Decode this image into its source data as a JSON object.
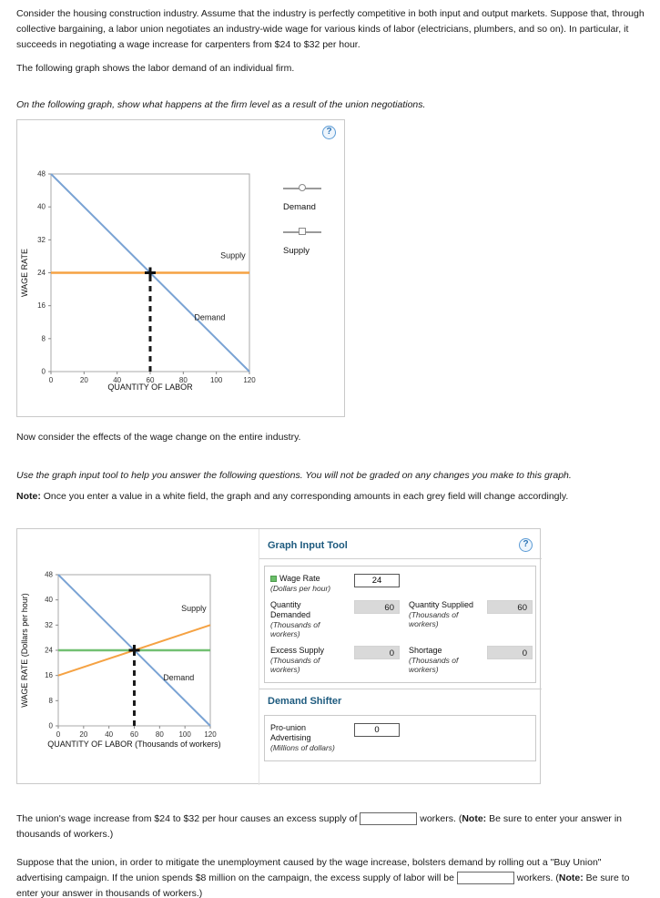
{
  "page": {
    "intro_para": "Consider the housing construction industry. Assume that the industry is perfectly competitive in both input and output markets. Suppose that, through collective bargaining, a labor union negotiates an industry-wide wage for various kinds of labor (electricians, plumbers, and so on). In particular, it succeeds in negotiating a wage increase for carpenters from $24 to $32 per hour.",
    "firm_intro": "The following graph shows the labor demand of an individual firm.",
    "firm_instruction": "On the following graph, show what happens at the firm level as a result of the union negotiations.",
    "industry_intro": "Now consider the effects of the wage change on the entire industry.",
    "tool_instruction": "Use the graph input tool to help you answer the following questions. You will not be graded on any changes you make to this graph.",
    "note_label": "Note:",
    "note_text": " Once you enter a value in a white field, the graph and any corresponding amounts in each grey field will change accordingly.",
    "help_glyph": "?"
  },
  "colors": {
    "demand_line": "#7aa3d4",
    "supply_line": "#f5a243",
    "wage_line": "#72c072",
    "panel_title": "#1d5a7e",
    "grey_field_bg": "#d9d9d9"
  },
  "firm_graph": {
    "legend": [
      {
        "label": "Demand",
        "marker": "circle"
      },
      {
        "label": "Supply",
        "marker": "square"
      }
    ]
  },
  "input_tool": {
    "title": "Graph Input Tool",
    "fields": {
      "wage_rate": {
        "label": "Wage Rate",
        "sub": "(Dollars per hour)",
        "value": "24"
      },
      "quantity_demanded": {
        "label": "Quantity Demanded",
        "sub": "(Thousands of workers)",
        "value": "60"
      },
      "quantity_supplied": {
        "label": "Quantity Supplied",
        "sub": "(Thousands of workers)",
        "value": "60"
      },
      "excess_supply": {
        "label": "Excess Supply",
        "sub": "(Thousands of workers)",
        "value": "0"
      },
      "shortage": {
        "label": "Shortage",
        "sub": "(Thousands of workers)",
        "value": "0"
      }
    },
    "demand_shifter": {
      "title": "Demand Shifter",
      "pro_union": {
        "label": "Pro-union Advertising",
        "sub": "(Millions of dollars)",
        "value": "0"
      }
    }
  },
  "questions": {
    "q1_before": "The union's wage increase from $24 to $32 per hour causes an excess supply of",
    "q1_value": "",
    "q1_after": "workers. (",
    "q1_note_label": "Note:",
    "q1_note_text": " Be sure to enter your answer in thousands of workers.)",
    "q2_before": "Suppose that the union, in order to mitigate the unemployment caused by the wage increase, bolsters demand by rolling out a \"Buy Union\" advertising campaign. If the union spends $8 million on the campaign, the excess supply of labor will be",
    "q2_value": "",
    "q2_after": "workers. (",
    "q2_note_label": "Note:",
    "q2_note_text": " Be sure to enter your answer in thousands of workers.)"
  },
  "chart_data": [
    {
      "id": "firm-chart",
      "type": "line",
      "xlabel": "QUANTITY OF LABOR",
      "ylabel": "WAGE RATE",
      "xlim": [
        0,
        120
      ],
      "ylim": [
        0,
        48
      ],
      "xticks": [
        0,
        20,
        40,
        60,
        80,
        100,
        120
      ],
      "yticks": [
        0,
        8,
        16,
        24,
        32,
        40,
        48
      ],
      "grid": false,
      "series": [
        {
          "name": "Demand",
          "color": "#7aa3d4",
          "width": 2,
          "points": [
            [
              0,
              48
            ],
            [
              120,
              0
            ]
          ]
        },
        {
          "name": "Supply (union wage floor)",
          "color": "#f5a243",
          "width": 2.5,
          "points": [
            [
              0,
              24
            ],
            [
              120,
              24
            ]
          ]
        },
        {
          "name": "Quantity hired guide",
          "color": "#1a1a1a",
          "width": 3,
          "dash": "6,5",
          "points": [
            [
              60,
              0
            ],
            [
              60,
              24
            ]
          ]
        }
      ],
      "marker": {
        "x": 60,
        "y": 24
      },
      "annotations": [
        {
          "text": "Supply",
          "x": 110,
          "y": 27.5
        },
        {
          "text": "Demand",
          "x": 96,
          "y": 12.5
        }
      ]
    },
    {
      "id": "industry-chart",
      "type": "line",
      "xlabel": "QUANTITY OF LABOR (Thousands of workers)",
      "ylabel": "WAGE RATE (Dollars per hour)",
      "xlim": [
        0,
        120
      ],
      "ylim": [
        0,
        48
      ],
      "xticks": [
        0,
        20,
        40,
        60,
        80,
        100,
        120
      ],
      "yticks": [
        0,
        8,
        16,
        24,
        32,
        40,
        48
      ],
      "grid": false,
      "series": [
        {
          "name": "Demand",
          "color": "#7aa3d4",
          "width": 2,
          "points": [
            [
              0,
              48
            ],
            [
              120,
              0
            ]
          ]
        },
        {
          "name": "Supply",
          "color": "#f5a243",
          "width": 2,
          "points": [
            [
              0,
              16
            ],
            [
              120,
              32
            ]
          ]
        },
        {
          "name": "Wage rate",
          "color": "#72c072",
          "width": 2.5,
          "points": [
            [
              0,
              24
            ],
            [
              120,
              24
            ]
          ]
        },
        {
          "name": "Quantity guide",
          "color": "#1a1a1a",
          "width": 3,
          "dash": "6,5",
          "points": [
            [
              60,
              0
            ],
            [
              60,
              24
            ]
          ]
        }
      ],
      "marker": {
        "x": 60,
        "y": 24
      },
      "annotations": [
        {
          "text": "Supply",
          "x": 107,
          "y": 36.5
        },
        {
          "text": "Demand",
          "x": 95,
          "y": 14.5
        }
      ]
    }
  ]
}
